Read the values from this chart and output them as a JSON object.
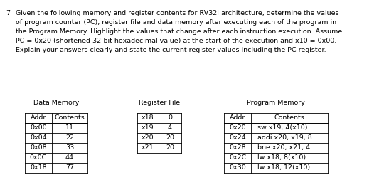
{
  "question_number": "7.",
  "question_text_lines": [
    "Given the following memory and register contents for RV32I architecture, determine the values",
    "of program counter (PC), register file and data memory after executing each of the program in",
    "the Program Memory. Highlight the values that change after each instruction execution. Assume",
    "PC = 0x20 (shortened 32-bit hexadecimal value) at the start of the execution and x10 = 0x00.",
    "Explain your answers clearly and state the current register values including the PC register."
  ],
  "data_memory_title": "Data Memory",
  "data_memory_headers": [
    "Addr",
    "Contents"
  ],
  "data_memory_rows": [
    [
      "0x00",
      "11"
    ],
    [
      "0x04",
      "22"
    ],
    [
      "0x08",
      "33"
    ],
    [
      "0x0C",
      "44"
    ],
    [
      "0x18",
      "77"
    ]
  ],
  "register_file_title": "Register File",
  "register_file_rows": [
    [
      "x18",
      "0"
    ],
    [
      "x19",
      "4"
    ],
    [
      "x20",
      "20"
    ],
    [
      "x21",
      "20"
    ]
  ],
  "program_memory_title": "Program Memory",
  "program_memory_headers": [
    "Addr",
    "Contents"
  ],
  "program_memory_rows": [
    [
      "0x20",
      "sw x19, 4(x10)"
    ],
    [
      "0x24",
      "addi x20, x19, 8"
    ],
    [
      "0x28",
      "bne x20, x21, 4"
    ],
    [
      "0x2C",
      "lw x18, 8(x10)"
    ],
    [
      "0x30",
      "lw x18, 12(x10)"
    ]
  ],
  "bg_color": "#ffffff",
  "text_color": "#000000",
  "fs_body": 6.8,
  "fs_table": 6.8,
  "lw": 0.6
}
